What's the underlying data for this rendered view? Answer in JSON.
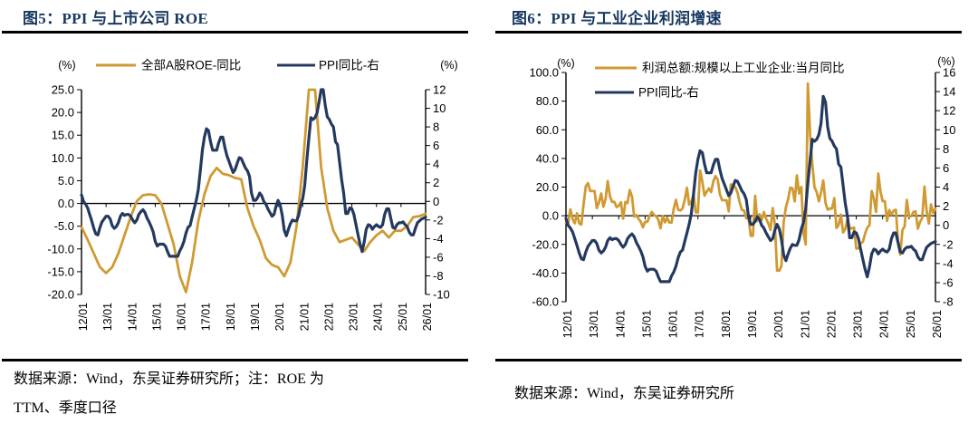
{
  "colors": {
    "gold": "#D09A33",
    "navy": "#24395F",
    "title_navy": "#17375E",
    "rule": "#000000"
  },
  "figures": [
    {
      "title": "图5：PPI 与上市公司 ROE",
      "source_lines": [
        "数据来源：Wind，东吴证券研究所；注：ROE 为",
        "TTM、季度口径"
      ]
    },
    {
      "title": "图6：PPI 与工业企业利润增速",
      "source_lines": [
        "数据来源：Wind，东吴证券研究所",
        ""
      ]
    }
  ],
  "chart_data": [
    {
      "type": "line",
      "title": "图5：PPI 与上市公司 ROE",
      "legend_position": "top",
      "grid": false,
      "x_tick_labels": [
        "12/01",
        "13/01",
        "14/01",
        "15/01",
        "16/01",
        "17/01",
        "18/01",
        "19/01",
        "20/01",
        "21/01",
        "22/01",
        "23/01",
        "24/01",
        "25/01",
        "26/01"
      ],
      "left_axis": {
        "unit": "(%)",
        "min": -20,
        "max": 25,
        "step": 5,
        "decimals": 1
      },
      "right_axis": {
        "unit": "(%)",
        "min": -10,
        "max": 12,
        "step": 2,
        "decimals": 0
      },
      "series": [
        {
          "name": "全部A股ROE-同比",
          "axis": "left",
          "color_key": "gold",
          "points_per_year": 4,
          "values": [
            -5.2,
            -8,
            -11,
            -14,
            -15.3,
            -14,
            -11,
            -7,
            -3,
            0.5,
            1.8,
            2,
            1.8,
            0,
            -4.5,
            -9,
            -16,
            -19.5,
            -13,
            -4,
            2,
            6,
            7.8,
            6.5,
            6.2,
            5.6,
            5.3,
            -1,
            -5,
            -8,
            -12,
            -13.5,
            -14,
            -16,
            -13,
            -5,
            8,
            26,
            25.5,
            8,
            -1,
            -6,
            -8.5,
            -8,
            -7.5,
            -9,
            -10.5,
            -8.5,
            -7,
            -6,
            -7.5,
            -6,
            -6,
            -5,
            -3,
            -2.8,
            -2.3
          ]
        },
        {
          "name": "PPI同比-右",
          "axis": "right",
          "color_key": "navy",
          "points_per_year": 12,
          "values": [
            0.7,
            0.0,
            -0.3,
            -0.7,
            -1.4,
            -2.1,
            -2.9,
            -3.5,
            -3.6,
            -2.8,
            -2.2,
            -1.9,
            -1.6,
            -1.6,
            -1.9,
            -2.6,
            -2.9,
            -2.7,
            -2.3,
            -1.6,
            -1.3,
            -1.5,
            -1.4,
            -1.4,
            -1.6,
            -2.0,
            -2.3,
            -2.0,
            -1.4,
            -1.1,
            -0.9,
            -1.2,
            -1.8,
            -2.2,
            -2.7,
            -3.3,
            -4.3,
            -4.8,
            -4.6,
            -4.6,
            -4.6,
            -4.8,
            -5.4,
            -5.9,
            -5.9,
            -5.9,
            -5.9,
            -5.9,
            -5.3,
            -4.9,
            -4.3,
            -3.4,
            -2.8,
            -2.6,
            -1.7,
            -0.8,
            0.1,
            1.2,
            3.3,
            5.5,
            6.9,
            7.8,
            7.6,
            6.4,
            5.5,
            5.5,
            5.5,
            6.3,
            6.9,
            6.9,
            5.8,
            4.9,
            4.3,
            3.7,
            3.1,
            3.4,
            4.1,
            4.7,
            4.6,
            4.1,
            3.6,
            3.3,
            2.7,
            0.9,
            0.1,
            0.1,
            0.4,
            0.9,
            0.6,
            0.0,
            -0.3,
            -0.8,
            -1.2,
            -1.6,
            -1.4,
            -0.5,
            0.1,
            -0.4,
            -1.5,
            -3.1,
            -3.7,
            -3.0,
            -2.4,
            -2.0,
            -2.1,
            -2.1,
            -1.5,
            -0.4,
            0.3,
            1.7,
            4.4,
            6.8,
            9.0,
            8.8,
            9.0,
            9.5,
            10.7,
            13.5,
            12.9,
            10.3,
            9.1,
            8.8,
            8.3,
            8.0,
            6.4,
            6.1,
            4.2,
            2.3,
            0.9,
            -1.3,
            -1.3,
            -0.7,
            -0.8,
            -1.4,
            -2.5,
            -3.6,
            -4.6,
            -5.4,
            -4.4,
            -3.0,
            -2.5,
            -2.6,
            -3.0,
            -2.7,
            -2.5,
            -2.7,
            -2.8,
            -2.5,
            -1.4,
            -0.8,
            -0.8,
            -1.8,
            -2.8,
            -2.9,
            -2.5,
            -2.3,
            -2.3,
            -2.2,
            -2.5,
            -2.7,
            -3.3,
            -3.6,
            -3.6,
            -2.9,
            -2.3,
            -2.1,
            -1.9,
            -1.8,
            -1.7
          ]
        }
      ]
    },
    {
      "type": "line",
      "title": "图6：PPI 与工业企业利润增速",
      "legend_position": "top",
      "grid": false,
      "x_tick_labels": [
        "12/01",
        "13/01",
        "14/01",
        "15/01",
        "16/01",
        "17/01",
        "18/01",
        "19/01",
        "20/01",
        "21/01",
        "22/01",
        "23/01",
        "24/01",
        "25/01",
        "26/01"
      ],
      "left_axis": {
        "unit": "(%)",
        "min": -60,
        "max": 100,
        "step": 20,
        "decimals": 1
      },
      "right_axis": {
        "unit": "(%)",
        "min": -8,
        "max": 16,
        "step": 2,
        "decimals": 0
      },
      "series": [
        {
          "name": "利润总额:规模以上工业企业:当月同比",
          "axis": "left",
          "color_key": "gold",
          "points_per_year": 12,
          "values": [
            -5,
            -5.2,
            4.5,
            -2.2,
            -5.3,
            1.7,
            -5.4,
            -6.2,
            7.8,
            20.5,
            22.8,
            17.3,
            17.2,
            17.2,
            5.3,
            9.3,
            15.5,
            6.3,
            11.6,
            24.2,
            13.5,
            9.7,
            9.7,
            6,
            7,
            9.4,
            -2.1,
            9.6,
            8.9,
            17.9,
            13.5,
            -0.6,
            0.4,
            -2.1,
            -4.2,
            -8,
            -4.2,
            -4.2,
            -0.4,
            2.6,
            0.6,
            -0.3,
            -2.9,
            -8.8,
            -0.1,
            -4.6,
            -1.4,
            -4.7,
            -4.7,
            4.8,
            11.1,
            4.2,
            3.7,
            5.1,
            11,
            19.5,
            7.7,
            9.8,
            14.5,
            2.3,
            2.3,
            31.5,
            23.8,
            14,
            16.7,
            19.1,
            16.5,
            24,
            27.7,
            25.1,
            14.9,
            10.8,
            10.8,
            10.8,
            3.1,
            21.9,
            21.1,
            20,
            16.2,
            9.2,
            4.1,
            3.6,
            -1.8,
            -1.9,
            -14,
            -14,
            13.9,
            -3.7,
            1.1,
            -3.1,
            2.6,
            -2,
            -5.3,
            -9.9,
            5.4,
            -6.3,
            -38.3,
            -38.3,
            -34.9,
            -4.3,
            6,
            11.5,
            19.6,
            19.1,
            10.1,
            28.2,
            15.5,
            20.1,
            -12,
            -20,
            92.3,
            57,
            36.4,
            20,
            16.4,
            10.1,
            16.3,
            24.6,
            9,
            4.2,
            5,
            5,
            12.2,
            -8.5,
            -6.5,
            0.8,
            -11.7,
            -9.2,
            -2.3,
            -8.6,
            -8.9,
            -8.3,
            -22.9,
            -22.9,
            -19.2,
            -18.2,
            -12.6,
            -8.3,
            -6.7,
            17.2,
            11.9,
            2.7,
            29.5,
            16.8,
            10.2,
            10.2,
            -3.5,
            4,
            0.7,
            3.6,
            4.1,
            -17.8,
            -27.1,
            -10,
            -7.3,
            11,
            -0.3,
            -0.3,
            2.6,
            3,
            -9.1,
            -4.3,
            -1.5,
            20.4,
            3.2,
            -5.5,
            8,
            2,
            5
          ]
        },
        {
          "name": "PPI同比-右",
          "axis": "right",
          "color_key": "navy",
          "points_per_year": 12,
          "values": [
            0.7,
            0.0,
            -0.3,
            -0.7,
            -1.4,
            -2.1,
            -2.9,
            -3.5,
            -3.6,
            -2.8,
            -2.2,
            -1.9,
            -1.6,
            -1.6,
            -1.9,
            -2.6,
            -2.9,
            -2.7,
            -2.3,
            -1.6,
            -1.3,
            -1.5,
            -1.4,
            -1.4,
            -1.6,
            -2.0,
            -2.3,
            -2.0,
            -1.4,
            -1.1,
            -0.9,
            -1.2,
            -1.8,
            -2.2,
            -2.7,
            -3.3,
            -4.3,
            -4.8,
            -4.6,
            -4.6,
            -4.6,
            -4.8,
            -5.4,
            -5.9,
            -5.9,
            -5.9,
            -5.9,
            -5.9,
            -5.3,
            -4.9,
            -4.3,
            -3.4,
            -2.8,
            -2.6,
            -1.7,
            -0.8,
            0.1,
            1.2,
            3.3,
            5.5,
            6.9,
            7.8,
            7.6,
            6.4,
            5.5,
            5.5,
            5.5,
            6.3,
            6.9,
            6.9,
            5.8,
            4.9,
            4.3,
            3.7,
            3.1,
            3.4,
            4.1,
            4.7,
            4.6,
            4.1,
            3.6,
            3.3,
            2.7,
            0.9,
            0.1,
            0.1,
            0.4,
            0.9,
            0.6,
            0.0,
            -0.3,
            -0.8,
            -1.2,
            -1.6,
            -1.4,
            -0.5,
            0.1,
            -0.4,
            -1.5,
            -3.1,
            -3.7,
            -3.0,
            -2.4,
            -2.0,
            -2.1,
            -2.1,
            -1.5,
            -0.4,
            0.3,
            1.7,
            4.4,
            6.8,
            9.0,
            8.8,
            9.0,
            9.5,
            10.7,
            13.5,
            12.9,
            10.3,
            9.1,
            8.8,
            8.3,
            8.0,
            6.4,
            6.1,
            4.2,
            2.3,
            0.9,
            -1.3,
            -1.3,
            -0.7,
            -0.8,
            -1.4,
            -2.5,
            -3.6,
            -4.6,
            -5.4,
            -4.4,
            -3.0,
            -2.5,
            -2.6,
            -3.0,
            -2.7,
            -2.5,
            -2.7,
            -2.8,
            -2.5,
            -1.4,
            -0.8,
            -0.8,
            -1.8,
            -2.8,
            -2.9,
            -2.5,
            -2.3,
            -2.3,
            -2.2,
            -2.5,
            -2.7,
            -3.3,
            -3.6,
            -3.6,
            -2.9,
            -2.3,
            -2.1,
            -1.9,
            -1.8,
            -1.7
          ]
        }
      ]
    }
  ]
}
